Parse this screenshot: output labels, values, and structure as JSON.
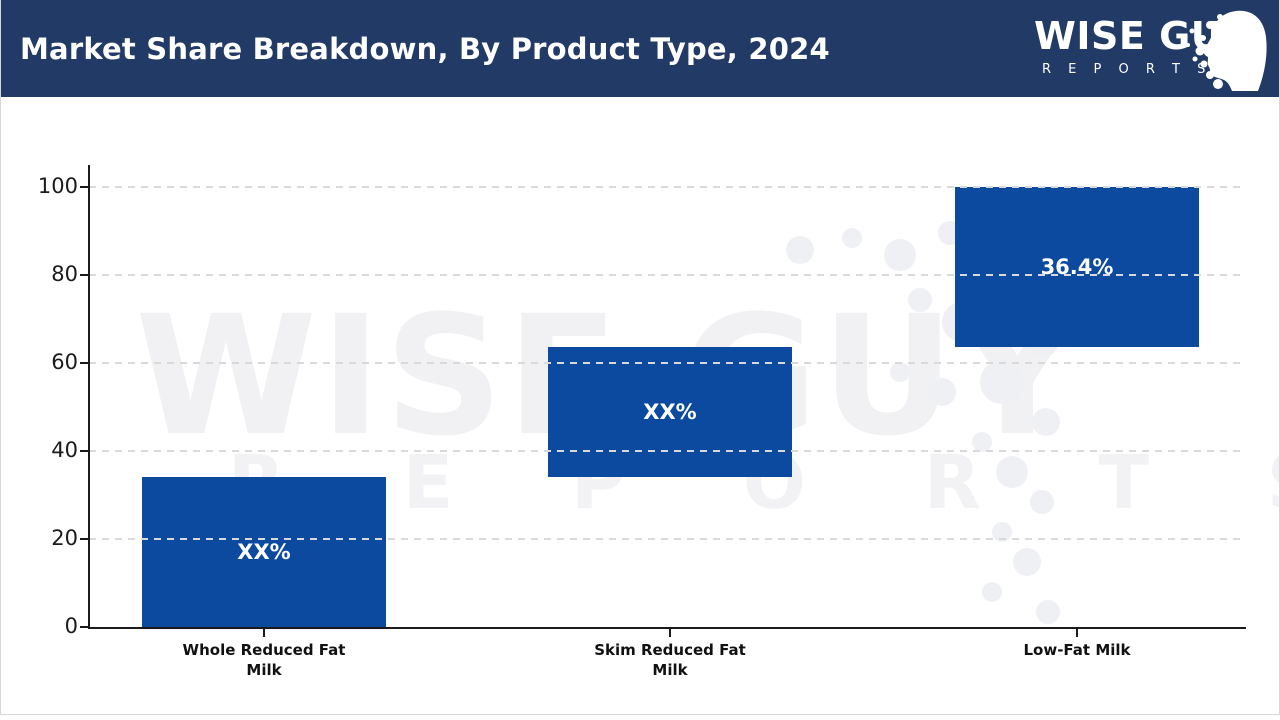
{
  "header": {
    "title": "Market Share Breakdown, By Product Type, 2024",
    "bg_color": "#213a66",
    "logo": {
      "line1": "WISE GUY",
      "line2": "R E P O R T S"
    }
  },
  "watermark": {
    "line1": "WISE GUY",
    "line2": "R E P O R T S"
  },
  "chart_data": {
    "type": "bar",
    "subtype": "floating-segment (waterfall-style market share breakdown)",
    "title": "Market Share Breakdown, By Product Type, 2024",
    "categories": [
      "Whole Reduced Fat Milk",
      "Skim Reduced Fat Milk",
      "Low-Fat Milk"
    ],
    "bars": [
      {
        "category": "Whole Reduced Fat Milk",
        "from": 0,
        "to": 34,
        "label": "XX%"
      },
      {
        "category": "Skim Reduced Fat Milk",
        "from": 34,
        "to": 63.6,
        "label": "XX%"
      },
      {
        "category": "Low-Fat Milk",
        "from": 63.6,
        "to": 100,
        "label": "36.4%"
      }
    ],
    "xlabel": "",
    "ylabel": "",
    "ylim": [
      0,
      100
    ],
    "yticks": [
      0,
      20,
      40,
      60,
      80,
      100
    ],
    "grid": "horizontal dashed, drawn over bars",
    "legend": "none",
    "bar_color": "#0b4a9f",
    "bar_label_color": "#ffffff",
    "axis_color": "#1a1a1a",
    "gridline_color": "#d9d9d9",
    "tick_label_color": "#1a1a1a"
  }
}
